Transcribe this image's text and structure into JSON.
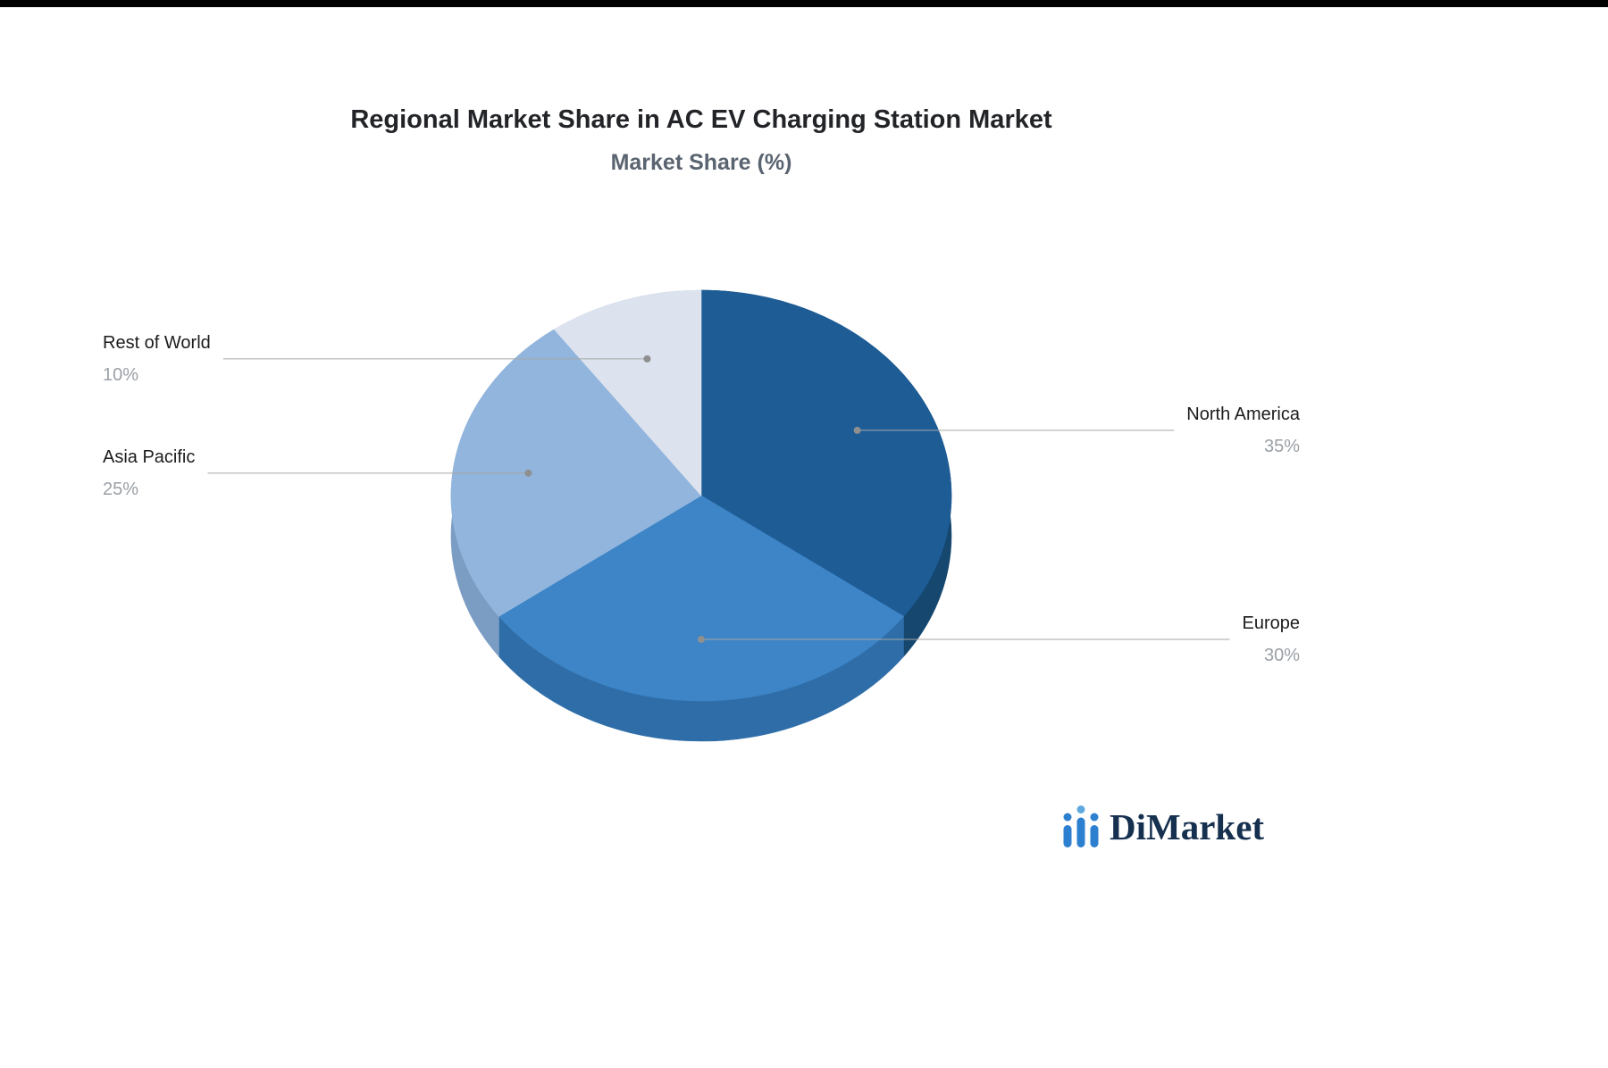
{
  "chart_data": {
    "type": "pie",
    "style": "3d",
    "title": "Regional Market Share in AC EV Charging Station Market",
    "subtitle": "Market Share (%)",
    "start_angle_deg": -90,
    "direction": "clockwise",
    "legend_position": "none",
    "labels_style": "leader-lines",
    "slices": [
      {
        "label": "North America",
        "value": 35,
        "display": "35%",
        "color": "#1e5c96",
        "side_color": "#15476f"
      },
      {
        "label": "Europe",
        "value": 30,
        "display": "30%",
        "color": "#3d85c6",
        "side_color": "#2e6da8"
      },
      {
        "label": "Asia Pacific",
        "value": 25,
        "display": "25%",
        "color": "#92b5dd",
        "side_color": "#7b9dc4"
      },
      {
        "label": "Rest of World",
        "value": 10,
        "display": "10%",
        "color": "#dce3ee",
        "side_color": "#bcc8da"
      }
    ],
    "leader_line_color": "#a6a6a6",
    "leader_dot_color": "#8f8f8f"
  },
  "branding": {
    "logo_text": "DiMarket",
    "icon": "bar-chart-dots-icon",
    "icon_color": "#2d7fd0",
    "icon_color_light": "#5fa9e0",
    "text_color": "#16304f"
  },
  "page": {
    "background": "#ffffff"
  }
}
